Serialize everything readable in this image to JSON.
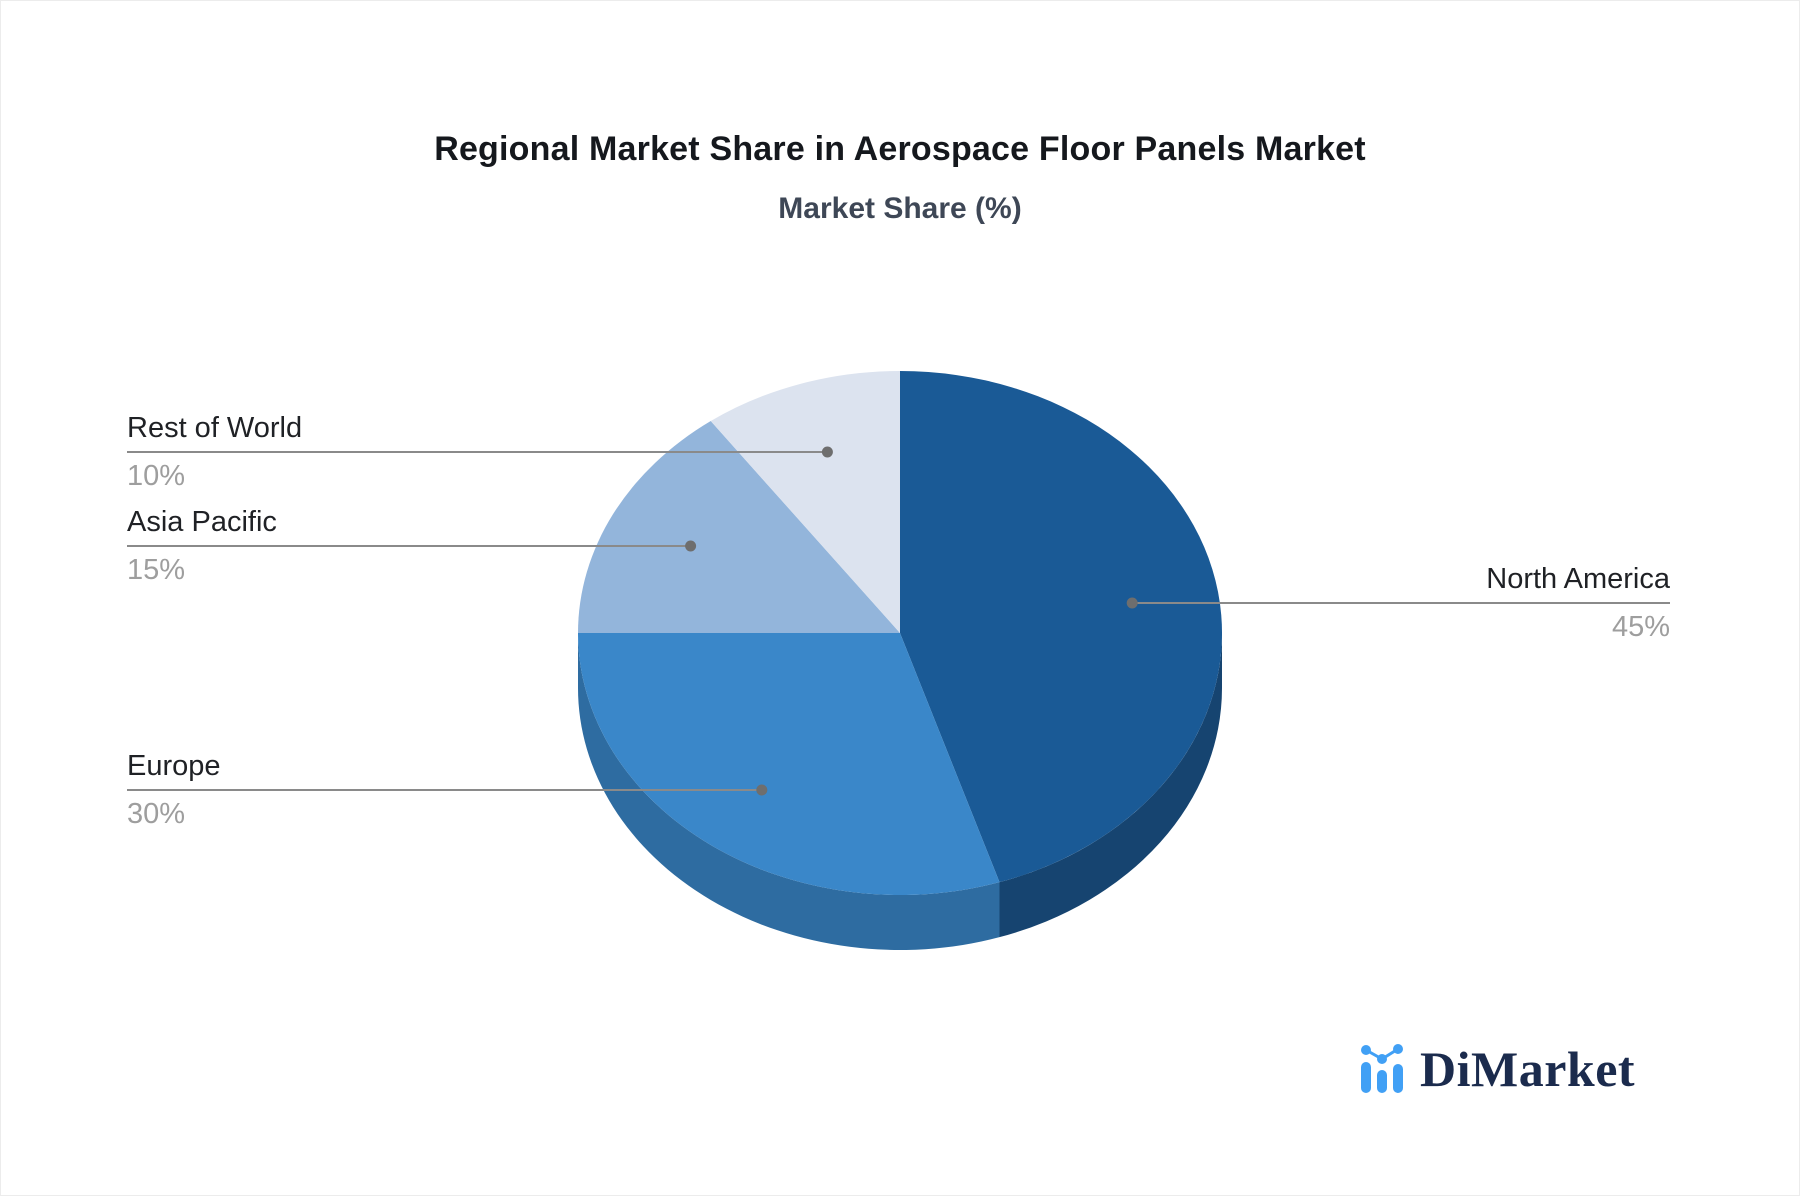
{
  "header": {
    "title": "Regional Market Share in Aerospace Floor Panels Market",
    "subtitle": "Market Share (%)"
  },
  "chart_data": {
    "type": "pie",
    "style": "3d",
    "title": "Regional Market Share in Aerospace Floor Panels Market",
    "subtitle": "Market Share (%)",
    "unit": "%",
    "start_angle_deg": 0,
    "direction": "clockwise",
    "legend_position": "none",
    "connector_color": "#8a8a8a",
    "connector_dot_color": "#6e6e6e",
    "label_name_color": "#1f2125",
    "label_value_color": "#9e9e9e",
    "slices": [
      {
        "label": "North America",
        "value": 45,
        "display": "45%",
        "color": "#1A5A96",
        "side_color": "#164470",
        "label_side": "right"
      },
      {
        "label": "Europe",
        "value": 30,
        "display": "30%",
        "color": "#3A87C9",
        "side_color": "#2E6CA1",
        "label_side": "left"
      },
      {
        "label": "Asia Pacific",
        "value": 15,
        "display": "15%",
        "color": "#93B5DB",
        "side_color": "#7EA0C6",
        "label_side": "left"
      },
      {
        "label": "Rest of World",
        "value": 10,
        "display": "10%",
        "color": "#DCE3EF",
        "side_color": "#C2CDDF",
        "label_side": "left"
      }
    ]
  },
  "branding": {
    "logo_text": "DiMarket",
    "logo_icon": "bar-line-chart-icon",
    "logo_text_color": "#1b2b4d",
    "logo_icon_color": "#41A0F5"
  }
}
